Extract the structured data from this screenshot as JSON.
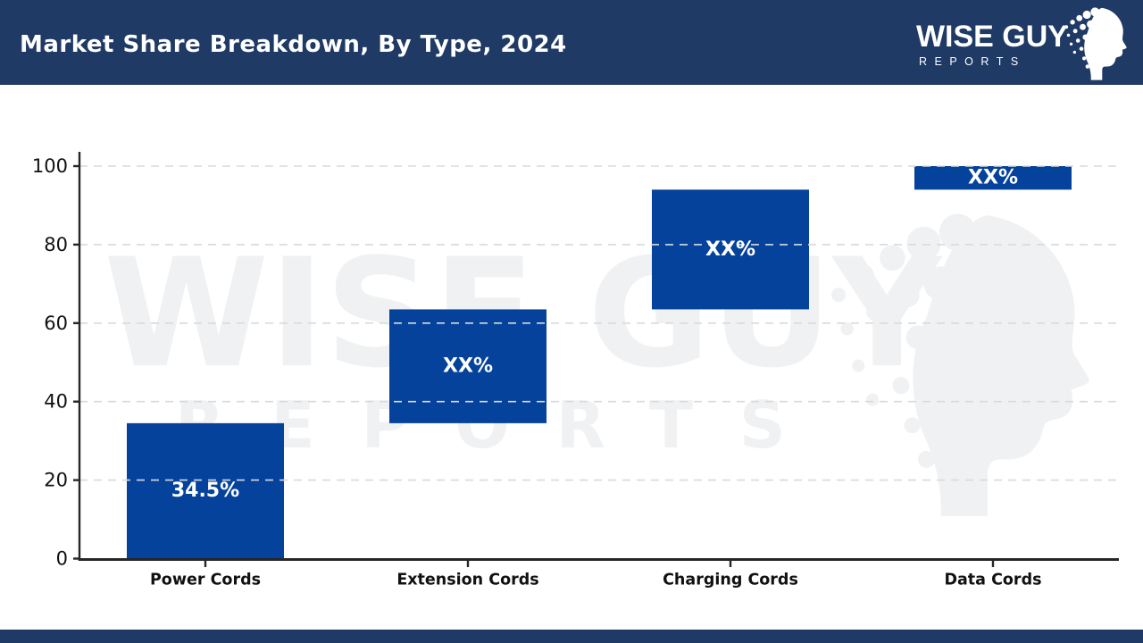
{
  "header": {
    "title": "Market Share Breakdown, By Type, 2024",
    "logo": {
      "line1": "WISE GUY",
      "line2": "REPORTS"
    }
  },
  "watermark": {
    "line1": "WISE GUY",
    "line2": "REPORTS"
  },
  "chart_data": {
    "type": "bar",
    "variant": "waterfall",
    "title": "Market Share Breakdown, By Type, 2024",
    "categories": [
      "Power Cords",
      "Extension Cords",
      "Charging Cords",
      "Data Cords"
    ],
    "segments": [
      {
        "category": "Power Cords",
        "start": 0,
        "end": 34.5,
        "label": "34.5%"
      },
      {
        "category": "Extension Cords",
        "start": 34.5,
        "end": 63.5,
        "label": "XX%"
      },
      {
        "category": "Charging Cords",
        "start": 63.5,
        "end": 94,
        "label": "XX%"
      },
      {
        "category": "Data Cords",
        "start": 94,
        "end": 100,
        "label": "XX%"
      }
    ],
    "yticks": [
      0,
      20,
      40,
      60,
      80,
      100
    ],
    "ylim": [
      0,
      104
    ],
    "xlabel": "",
    "ylabel": "",
    "grid": true,
    "grid_style": "dashed",
    "legend": "none"
  },
  "colors": {
    "header_bg": "#1F3A64",
    "footer_bg": "#1F3A64",
    "bar": "#05429B",
    "grid": "#DADADA",
    "axis": "#262626",
    "tick_text": "#111111",
    "bar_label_text": "#FFFFFF",
    "watermark": "#F0F1F3"
  }
}
